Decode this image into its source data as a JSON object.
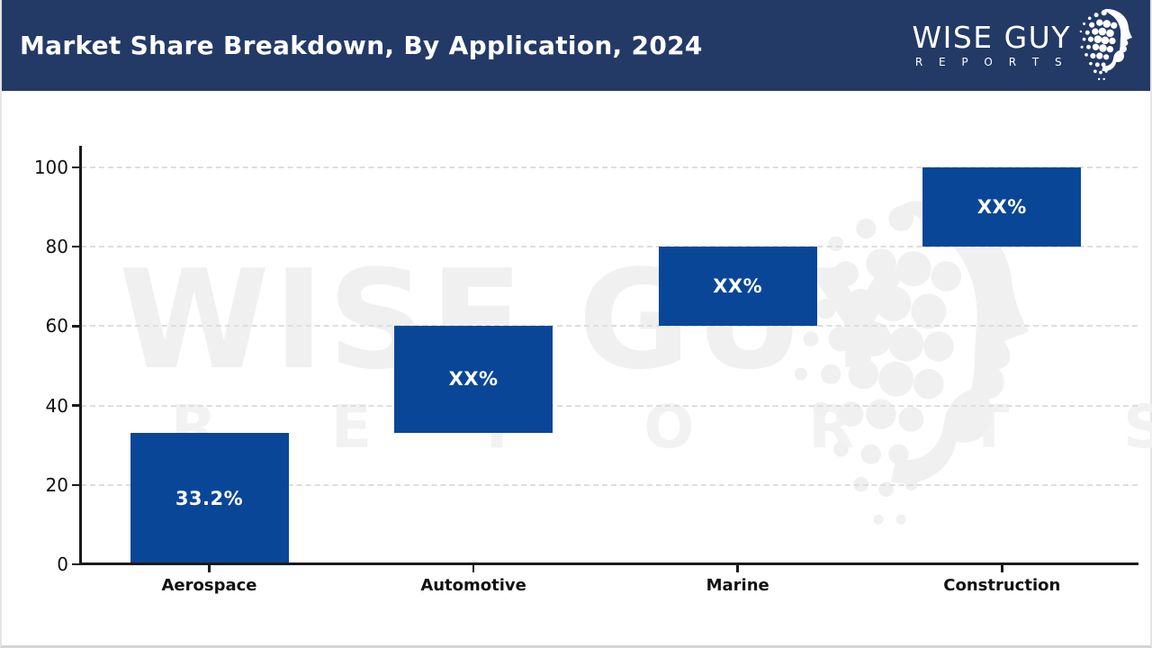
{
  "header": {
    "title": "Market Share Breakdown, By Application, 2024",
    "logo": {
      "name": "WISE GUY",
      "sub": "R E P O R T S"
    }
  },
  "watermark": {
    "line1": "WISE GUY",
    "line2": "R E P O R T S"
  },
  "chart_data": {
    "type": "bar",
    "subtype": "waterfall",
    "title": "Market Share Breakdown, By Application, 2024",
    "categories": [
      "Aerospace",
      "Automotive",
      "Marine",
      "Construction"
    ],
    "segments": [
      {
        "category": "Aerospace",
        "start": 0,
        "end": 33.2,
        "label": "33.2%"
      },
      {
        "category": "Automotive",
        "start": 33.2,
        "end": 60,
        "label": "XX%"
      },
      {
        "category": "Marine",
        "start": 60,
        "end": 80,
        "label": "XX%"
      },
      {
        "category": "Construction",
        "start": 80,
        "end": 100,
        "label": "XX%"
      }
    ],
    "ylim": [
      0,
      100
    ],
    "yticks": [
      0,
      20,
      40,
      60,
      80,
      100
    ],
    "grid": "horizontal-dashed",
    "legend": "none",
    "xlabel": "",
    "ylabel": "",
    "bar_color": "#0a4697",
    "label_color": "#ffffff"
  },
  "colors": {
    "header_bg": "#233a66",
    "bar": "#0a4697",
    "axis": "#1a1a1a",
    "grid": "#dedede",
    "watermark": "#f0f0f0",
    "frame_border": "#d5d5d5"
  }
}
